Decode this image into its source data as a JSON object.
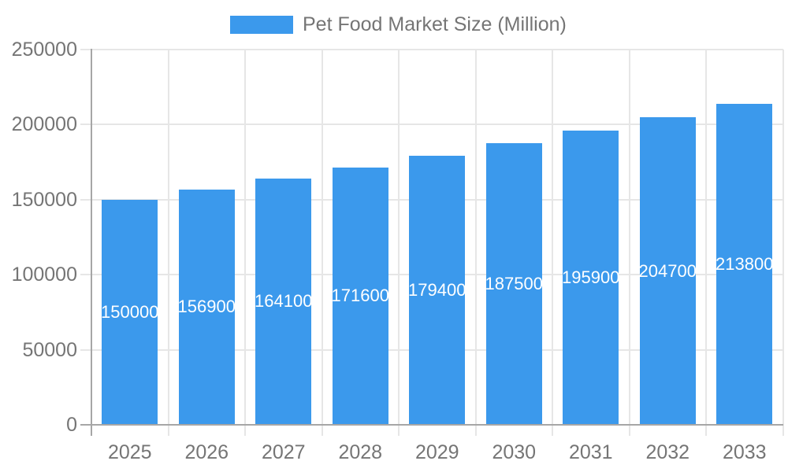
{
  "legend": {
    "label": "Pet Food Market Size (Million)"
  },
  "colors": {
    "bar": "#3B99EC",
    "bar_label_text": "#ffffff",
    "axis_text": "#757575",
    "axis_line": "#a6a6a6",
    "gridline": "#e6e6e6",
    "background": "#ffffff"
  },
  "chart_data": {
    "type": "bar",
    "title": "Pet Food Market Size (Million)",
    "series_name": "Pet Food Market Size (Million)",
    "categories": [
      "2025",
      "2026",
      "2027",
      "2028",
      "2029",
      "2030",
      "2031",
      "2032",
      "2033"
    ],
    "values": [
      150000,
      156900,
      164100,
      171600,
      179400,
      187500,
      195900,
      204700,
      213800
    ],
    "bar_labels": [
      "150000",
      "156900",
      "164100",
      "171600",
      "179400",
      "187500",
      "195900",
      "204700",
      "213800"
    ],
    "xlabel": "",
    "ylabel": "",
    "ylim": [
      0,
      250000
    ],
    "yticks": [
      0,
      50000,
      100000,
      150000,
      200000,
      250000
    ],
    "ytick_labels": [
      "0",
      "50000",
      "100000",
      "150000",
      "200000",
      "250000"
    ],
    "grid": true,
    "legend_position": "top",
    "bar_color": "#3B99EC",
    "bar_label_position": "center-inside"
  }
}
